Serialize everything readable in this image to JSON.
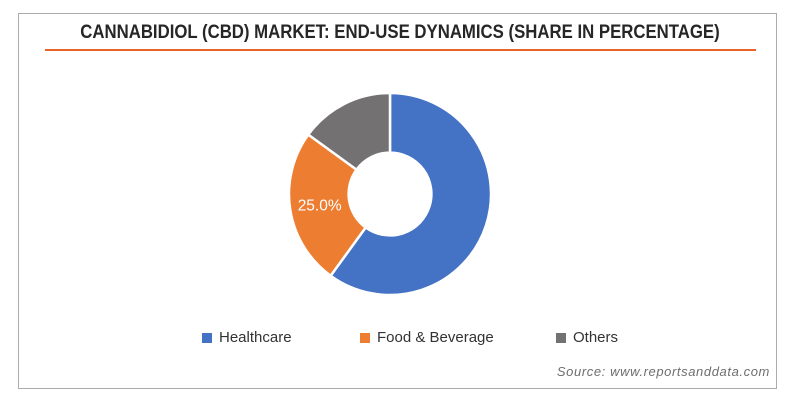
{
  "chart_data": {
    "type": "pie",
    "subtype": "donut",
    "title": "CANNABIDIOL (CBD) MARKET: END-USE DYNAMICS (SHARE IN PERCENTAGE)",
    "unit": "percent",
    "start_angle_deg": 0,
    "direction": "clockwise",
    "hole_ratio": 0.41,
    "slice_gap_color": "#FFFFFF",
    "legend_position": "bottom",
    "series": [
      {
        "name": "Healthcare",
        "value": 60.0,
        "color": "#4472C4",
        "data_label": ""
      },
      {
        "name": "Food & Beverage",
        "value": 25.0,
        "color": "#ED7D31",
        "data_label": "25.0%"
      },
      {
        "name": "Others",
        "value": 15.0,
        "color": "#737171",
        "data_label": ""
      }
    ]
  },
  "source": "Source: www.reportsanddata.com",
  "colors": {
    "background": "#FFFFFF",
    "frame_border": "#ABABAB",
    "title_text": "#262626",
    "title_rule": "#E8632C",
    "data_label_text": "#FFFFFF",
    "legend_text": "#333333",
    "source_text": "#6E6E6E"
  }
}
